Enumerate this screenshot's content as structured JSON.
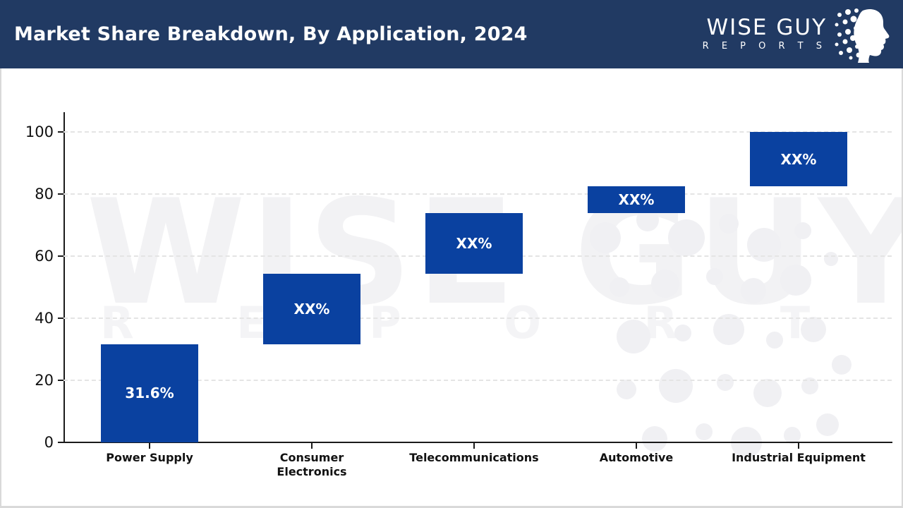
{
  "header": {
    "title": "Market Share Breakdown, By Application, 2024",
    "brand": {
      "name_top": "WISE GUY",
      "name_bottom": "R E P O R T S"
    }
  },
  "watermark": {
    "line1": "WISE GUY",
    "line2": "R E P O R T S"
  },
  "colors": {
    "header_bg": "#213a63",
    "bar": "#0a41a0",
    "grid": "#e4e4e4",
    "axis": "#1a1a1a",
    "bar_label_text": "#ffffff",
    "watermark_text": "#f2f2f4",
    "card_border": "#d9d9d9"
  },
  "chart_data": {
    "type": "bar",
    "variant": "waterfall",
    "title": "Market Share Breakdown, By Application, 2024",
    "xlabel": "",
    "ylabel": "",
    "ylim": [
      0,
      105
    ],
    "yticks": [
      0,
      20,
      40,
      60,
      80,
      100
    ],
    "grid": "horizontal-dashed",
    "legend": null,
    "categories": [
      "Power Supply",
      "Consumer Electronics",
      "Telecommunications",
      "Automotive",
      "Industrial Equipment"
    ],
    "segments": [
      {
        "category": "Power Supply",
        "start": 0,
        "end": 31.6,
        "label": "31.6%"
      },
      {
        "category": "Consumer Electronics",
        "start": 31.6,
        "end": 54.4,
        "label": "XX%"
      },
      {
        "category": "Telecommunications",
        "start": 54.4,
        "end": 73.8,
        "label": "XX%"
      },
      {
        "category": "Automotive",
        "start": 73.8,
        "end": 82.4,
        "label": "XX%"
      },
      {
        "category": "Industrial Equipment",
        "start": 82.4,
        "end": 100,
        "label": "XX%"
      }
    ],
    "bar_color": "#0a41a0"
  }
}
